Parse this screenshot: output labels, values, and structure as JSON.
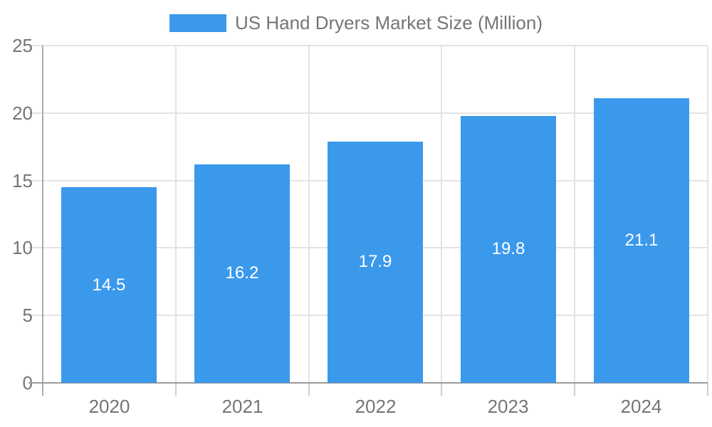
{
  "legend": {
    "label": "US Hand Dryers Market Size (Million)"
  },
  "colors": {
    "bar": "#3B99EC",
    "grid": "#e3e3e3",
    "axis_line_bottom": "#9b9b9b",
    "axis_line_left": "#ababab",
    "tick_bottom": "#cfcfcf",
    "label_text": "#757575",
    "value_label_text": "#ffffff",
    "background": "#ffffff"
  },
  "chart_data": {
    "type": "bar",
    "title": "US Hand Dryers Market Size (Million)",
    "categories": [
      "2020",
      "2021",
      "2022",
      "2023",
      "2024"
    ],
    "values": [
      14.5,
      16.2,
      17.9,
      19.8,
      21.1
    ],
    "series": [
      {
        "name": "US Hand Dryers Market Size (Million)",
        "values": [
          14.5,
          16.2,
          17.9,
          19.8,
          21.1
        ]
      }
    ],
    "xlabel": "",
    "ylabel": "",
    "ylim": [
      0,
      25
    ],
    "yticks": [
      0,
      5,
      10,
      15,
      20,
      25
    ],
    "grid": true,
    "legend_position": "top-center",
    "value_labels": "inside-center"
  }
}
